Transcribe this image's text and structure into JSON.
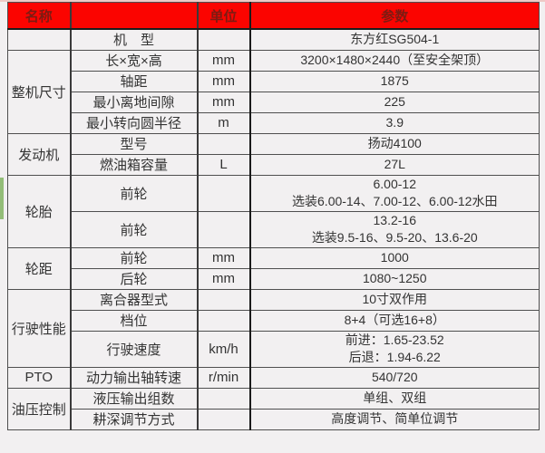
{
  "header": {
    "name_label": "名称",
    "blank_label": "",
    "unit_label": "单位",
    "param_label": "参数"
  },
  "colors": {
    "page_bg": "#f2f0f1",
    "top_strip": "#eecac6",
    "green_strip": "#93bd78",
    "header_bg": "#fb0400",
    "header_text": "#7c1b12",
    "border": "#4f4f4f",
    "cell_text": "#333333"
  },
  "rows": [
    {
      "group": {
        "label": "",
        "span": 1
      },
      "name": "机　型",
      "unit": "",
      "value_lines": [
        "东方红SG504-1"
      ],
      "tall": false
    },
    {
      "group": {
        "label": "整机尺寸",
        "span": 4
      },
      "name": "长×宽×高",
      "unit": "mm",
      "value_lines": [
        "3200×1480×2440（至安全架顶）"
      ],
      "tall": false
    },
    {
      "name": "轴距",
      "unit": "mm",
      "value_lines": [
        "1875"
      ],
      "tall": false
    },
    {
      "name": "最小离地间隙",
      "unit": "mm",
      "value_lines": [
        "225"
      ],
      "tall": false
    },
    {
      "name": "最小转向圆半径",
      "unit": "m",
      "value_lines": [
        "3.9"
      ],
      "tall": false
    },
    {
      "group": {
        "label": "发动机",
        "span": 2
      },
      "name": "型号",
      "unit": "",
      "value_lines": [
        "扬动4100"
      ],
      "tall": false
    },
    {
      "name": "燃油箱容量",
      "unit": "L",
      "value_lines": [
        "27L"
      ],
      "tall": false
    },
    {
      "group": {
        "label": "轮胎",
        "span": 2
      },
      "name": "前轮",
      "unit": "",
      "value_lines": [
        "6.00-12",
        "选装6.00-14、7.00-12、6.00-12水田"
      ],
      "tall": true
    },
    {
      "name": "前轮",
      "unit": "",
      "value_lines": [
        "13.2-16",
        "选装9.5-16、9.5-20、13.6-20"
      ],
      "tall": true
    },
    {
      "group": {
        "label": "轮距",
        "span": 2
      },
      "name": "前轮",
      "unit": "mm",
      "value_lines": [
        "1000"
      ],
      "tall": false
    },
    {
      "name": "后轮",
      "unit": "mm",
      "value_lines": [
        "1080~1250"
      ],
      "tall": false
    },
    {
      "group": {
        "label": "行驶性能",
        "span": 3
      },
      "name": "离合器型式",
      "unit": "",
      "value_lines": [
        "10寸双作用"
      ],
      "tall": false
    },
    {
      "name": "档位",
      "unit": "",
      "value_lines": [
        "8+4（可选16+8）"
      ],
      "tall": false
    },
    {
      "name": "行驶速度",
      "unit": "km/h",
      "value_lines": [
        "前进：1.65-23.52",
        "后退：1.94-6.22"
      ],
      "tall": true
    },
    {
      "group": {
        "label": "PTO",
        "span": 1
      },
      "name": "动力输出轴转速",
      "unit": "r/min",
      "value_lines": [
        "540/720"
      ],
      "tall": false
    },
    {
      "group": {
        "label": "油压控制",
        "span": 2
      },
      "name": "液压输出组数",
      "unit": "",
      "value_lines": [
        "单组、双组"
      ],
      "tall": false
    },
    {
      "name": "耕深调节方式",
      "unit": "",
      "value_lines": [
        "高度调节、简单位调节"
      ],
      "tall": false
    }
  ]
}
